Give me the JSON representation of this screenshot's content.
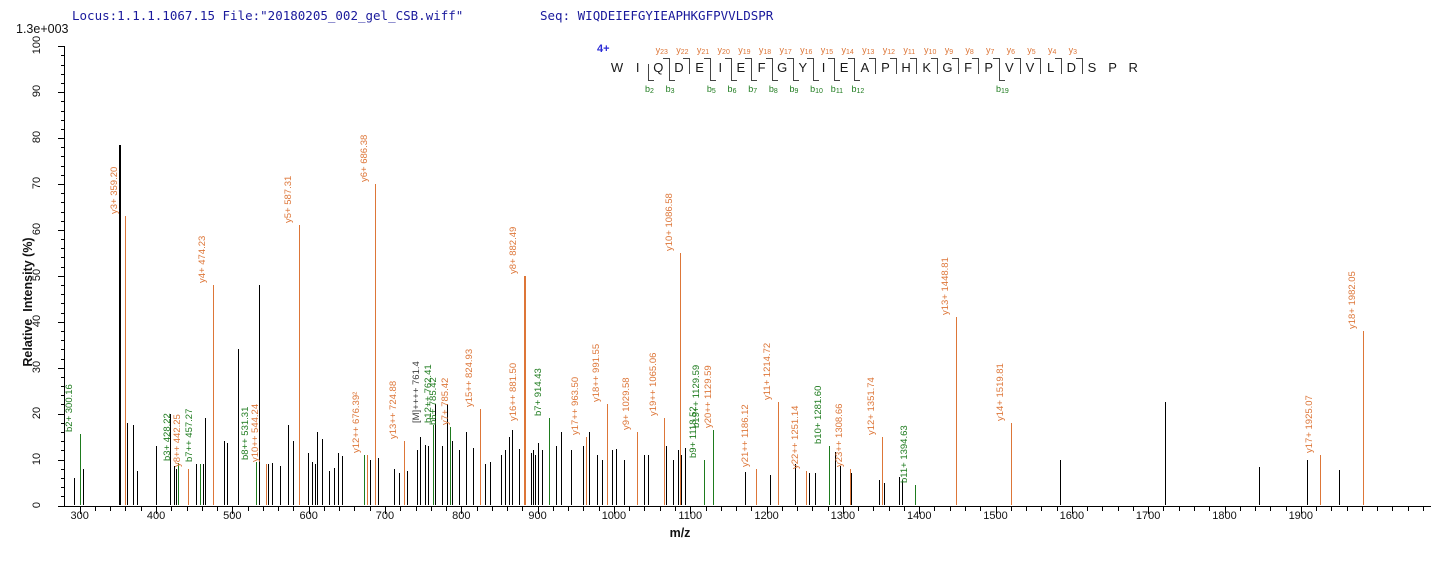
{
  "header": {
    "locus_file": "Locus:1.1.1.1067.15 File:\"20180205_002_gel_CSB.wiff\"",
    "seq_label": "Seq: ",
    "seq_value": "WIQDEIEFGYIEAPHKGFPVVLDSPR"
  },
  "scale_label": "1.3e+003",
  "chart_data": {
    "type": "bar",
    "subtype": "ms2-mass-spectrum",
    "xlabel": "m/z",
    "ylabel": "Relative  Intensity (%)",
    "xlim": [
      278,
      2070
    ],
    "ylim": [
      0,
      100
    ],
    "x_major_ticks": [
      300,
      400,
      500,
      600,
      700,
      800,
      900,
      1000,
      1100,
      1200,
      1300,
      1400,
      1500,
      1600,
      1700,
      1800,
      1900
    ],
    "x_minor_step": 20,
    "y_major_ticks": [
      0,
      10,
      20,
      30,
      40,
      50,
      60,
      70,
      80,
      90,
      100
    ],
    "y_minor_step": 2,
    "grid": false,
    "precursor_charge": "4+",
    "sequence": "WIQDEIEFGYIEAPHKGFPVVLDSPR",
    "fragment_boundaries": [
      {
        "after": 2,
        "b": "b2"
      },
      {
        "after": 3,
        "y": "y23",
        "b": "b3"
      },
      {
        "after": 4,
        "y": "y22"
      },
      {
        "after": 5,
        "y": "y21",
        "b": "b5"
      },
      {
        "after": 6,
        "y": "y20",
        "b": "b6"
      },
      {
        "after": 7,
        "y": "y19",
        "b": "b7"
      },
      {
        "after": 8,
        "y": "y18",
        "b": "b8"
      },
      {
        "after": 9,
        "y": "y17",
        "b": "b9"
      },
      {
        "after": 10,
        "y": "y16",
        "b": "b10"
      },
      {
        "after": 11,
        "y": "y15",
        "b": "b11"
      },
      {
        "after": 12,
        "y": "y14",
        "b": "b12"
      },
      {
        "after": 13,
        "y": "y13"
      },
      {
        "after": 14,
        "y": "y12"
      },
      {
        "after": 15,
        "y": "y11"
      },
      {
        "after": 16,
        "y": "y10"
      },
      {
        "after": 17,
        "y": "y9"
      },
      {
        "after": 18,
        "y": "y8"
      },
      {
        "after": 19,
        "y": "y7",
        "b": "b19"
      },
      {
        "after": 20,
        "y": "y6"
      },
      {
        "after": 21,
        "y": "y5"
      },
      {
        "after": 22,
        "y": "y4"
      },
      {
        "after": 23,
        "y": "y3"
      }
    ],
    "labeled_peaks": [
      {
        "mz": 300.16,
        "h": 15.5,
        "labels": [
          [
            "b2+ 300.16",
            "b"
          ]
        ]
      },
      {
        "mz": 359.2,
        "h": 63,
        "labels": [
          [
            "y3+ 359.20",
            "y"
          ]
        ]
      },
      {
        "mz": 428.22,
        "h": 9.2,
        "labels": [
          [
            "b3+ 428.22",
            "b"
          ]
        ]
      },
      {
        "mz": 442.25,
        "h": 8,
        "labels": [
          [
            "y8++ 442.25",
            "y"
          ]
        ]
      },
      {
        "mz": 457.27,
        "h": 9,
        "labels": [
          [
            "b7++ 457.27",
            "b"
          ]
        ]
      },
      {
        "mz": 474.23,
        "h": 48,
        "labels": [
          [
            "y4+ 474.23",
            "y"
          ]
        ]
      },
      {
        "mz": 531.31,
        "h": 9.5,
        "labels": [
          [
            "b8++ 531.31",
            "b"
          ]
        ]
      },
      {
        "mz": 544.24,
        "h": 9,
        "labels": [
          [
            "y10++ 544.24",
            "y"
          ]
        ]
      },
      {
        "mz": 587.31,
        "h": 61,
        "labels": [
          [
            "y5+ 587.31",
            "y"
          ]
        ]
      },
      {
        "mz": 676.39,
        "h": 11,
        "labels": [
          [
            "y12++ 676.39²",
            "y"
          ]
        ]
      },
      {
        "mz": 686.38,
        "h": 70,
        "labels": [
          [
            "y6+ 686.38",
            "y"
          ]
        ]
      },
      {
        "mz": 724.88,
        "h": 14,
        "labels": [
          [
            "y13++ 724.88",
            "y"
          ]
        ]
      },
      {
        "mz": 762.41,
        "h": 17.5,
        "labels": [
          [
            "[M]++++ 761.4",
            "M"
          ],
          [
            "b12++ 762.41",
            "b"
          ]
        ]
      },
      {
        "mz": 785.42,
        "h": 17,
        "labels": [
          [
            "b6+ 785.42",
            "b"
          ],
          [
            "y7+ 785.42",
            "y"
          ]
        ]
      },
      {
        "mz": 824.93,
        "h": 21,
        "labels": [
          [
            "y15++ 824.93",
            "y"
          ]
        ]
      },
      {
        "mz": 881.5,
        "h": 18,
        "labels": [
          [
            "y16++ 881.50",
            "y"
          ]
        ]
      },
      {
        "mz": 882.49,
        "h": 50,
        "w": 2,
        "labels": [
          [
            "y8+ 882.49",
            "y"
          ]
        ]
      },
      {
        "mz": 914.43,
        "h": 19,
        "labels": [
          [
            "b7+ 914.43",
            "b"
          ]
        ]
      },
      {
        "mz": 963.5,
        "h": 15,
        "labels": [
          [
            "y17++ 963.50",
            "y"
          ]
        ]
      },
      {
        "mz": 991.55,
        "h": 22,
        "labels": [
          [
            "y18++ 991.55",
            "y"
          ]
        ]
      },
      {
        "mz": 1029.58,
        "h": 16,
        "labels": [
          [
            "y9+ 1029.58",
            "y"
          ]
        ]
      },
      {
        "mz": 1065.06,
        "h": 19,
        "labels": [
          [
            "y19++ 1065.06",
            "y"
          ]
        ]
      },
      {
        "mz": 1086.58,
        "h": 55,
        "labels": [
          [
            "y10+ 1086.58",
            "y"
          ]
        ]
      },
      {
        "mz": 1118.52,
        "h": 10,
        "labels": [
          [
            "b9+ 1118.52",
            "b"
          ]
        ]
      },
      {
        "mz": 1129.59,
        "h": 16.5,
        "labels": [
          [
            "b19++ 1129.59",
            "b"
          ],
          [
            "y20++ 1129.59",
            "y"
          ]
        ]
      },
      {
        "mz": 1186.12,
        "h": 8,
        "labels": [
          [
            "y21++ 1186.12",
            "y"
          ]
        ]
      },
      {
        "mz": 1214.72,
        "h": 22.5,
        "labels": [
          [
            "y11+ 1214.72",
            "y"
          ]
        ]
      },
      {
        "mz": 1251.14,
        "h": 7.5,
        "labels": [
          [
            "y22++ 1251.14",
            "y"
          ]
        ]
      },
      {
        "mz": 1281.6,
        "h": 13,
        "labels": [
          [
            "b10+ 1281.60",
            "b"
          ]
        ]
      },
      {
        "mz": 1308.66,
        "h": 8,
        "labels": [
          [
            "y23++ 1308.66",
            "y"
          ]
        ]
      },
      {
        "mz": 1351.74,
        "h": 15,
        "labels": [
          [
            "y12+ 1351.74",
            "y"
          ]
        ]
      },
      {
        "mz": 1394.63,
        "h": 4.5,
        "labels": [
          [
            "b11+ 1394.63",
            "b"
          ]
        ]
      },
      {
        "mz": 1448.81,
        "h": 41,
        "labels": [
          [
            "y13+ 1448.81",
            "y"
          ]
        ]
      },
      {
        "mz": 1519.81,
        "h": 18,
        "labels": [
          [
            "y14+ 1519.81",
            "y"
          ]
        ]
      },
      {
        "mz": 1925.07,
        "h": 11,
        "labels": [
          [
            "y17+ 1925.07",
            "y"
          ]
        ]
      },
      {
        "mz": 1982.05,
        "h": 38,
        "labels": [
          [
            "y18+ 1982.05",
            "y"
          ]
        ]
      }
    ],
    "unlabeled_peaks": [
      [
        293,
        6
      ],
      [
        301,
        12
      ],
      [
        304,
        8
      ],
      [
        352,
        78.5
      ],
      [
        362,
        18
      ],
      [
        370,
        17.5
      ],
      [
        375,
        7.5
      ],
      [
        400,
        13
      ],
      [
        418,
        20
      ],
      [
        424,
        8.5
      ],
      [
        426,
        8
      ],
      [
        453,
        9
      ],
      [
        461,
        9
      ],
      [
        464,
        19
      ],
      [
        489,
        14
      ],
      [
        493,
        13.5
      ],
      [
        507,
        34
      ],
      [
        535,
        48
      ],
      [
        547,
        9
      ],
      [
        552,
        9.2
      ],
      [
        563,
        8.5
      ],
      [
        573,
        17.5
      ],
      [
        579,
        14
      ],
      [
        599,
        11.5
      ],
      [
        605,
        9.5
      ],
      [
        608,
        9
      ],
      [
        611,
        16
      ],
      [
        617,
        14.5
      ],
      [
        627,
        7.5
      ],
      [
        633,
        8.2
      ],
      [
        638,
        11.5
      ],
      [
        644,
        10.7
      ],
      [
        672,
        11,
        "g"
      ],
      [
        681,
        10
      ],
      [
        691,
        10.3
      ],
      [
        712,
        8
      ],
      [
        718,
        7
      ],
      [
        729,
        7.5
      ],
      [
        742,
        12
      ],
      [
        746,
        15
      ],
      [
        752,
        13.2
      ],
      [
        757,
        13
      ],
      [
        766,
        22
      ],
      [
        775,
        13
      ],
      [
        781,
        22
      ],
      [
        788,
        14
      ],
      [
        797,
        12
      ],
      [
        806,
        16
      ],
      [
        815,
        12.5
      ],
      [
        831,
        9
      ],
      [
        838,
        9.5
      ],
      [
        852,
        11
      ],
      [
        857,
        12
      ],
      [
        862,
        15
      ],
      [
        866,
        16.5
      ],
      [
        876,
        12.3
      ],
      [
        891,
        11.5
      ],
      [
        894,
        12
      ],
      [
        897,
        11
      ],
      [
        900,
        13.5
      ],
      [
        906,
        12
      ],
      [
        924,
        13
      ],
      [
        931,
        16
      ],
      [
        944,
        12
      ],
      [
        959,
        13
      ],
      [
        967,
        16
      ],
      [
        978,
        11
      ],
      [
        984,
        10
      ],
      [
        997,
        12
      ],
      [
        1003,
        12.2
      ],
      [
        1013,
        10
      ],
      [
        1040,
        11
      ],
      [
        1045,
        11
      ],
      [
        1068,
        13
      ],
      [
        1077,
        10
      ],
      [
        1084,
        12
      ],
      [
        1088,
        11
      ],
      [
        1093,
        12.5
      ],
      [
        1172,
        7.3
      ],
      [
        1205,
        6.6
      ],
      [
        1237,
        9
      ],
      [
        1256,
        7
      ],
      [
        1263,
        7
      ],
      [
        1290,
        11.7
      ],
      [
        1296,
        8.5
      ],
      [
        1311,
        7
      ],
      [
        1347,
        5.5
      ],
      [
        1354,
        5
      ],
      [
        1373,
        6.3
      ],
      [
        1377,
        5.5
      ],
      [
        1585,
        10
      ],
      [
        1722,
        22.5
      ],
      [
        1845,
        8.3
      ],
      [
        1908,
        10
      ],
      [
        1950,
        7.8
      ]
    ],
    "colors": {
      "y_ion": "#dd7638",
      "b_ion": "#1e7b1e",
      "precursor_label": "#404040",
      "unlabeled": "#000000",
      "header_text": "#1a1a9c",
      "charge_text": "#2b2bd6"
    }
  }
}
